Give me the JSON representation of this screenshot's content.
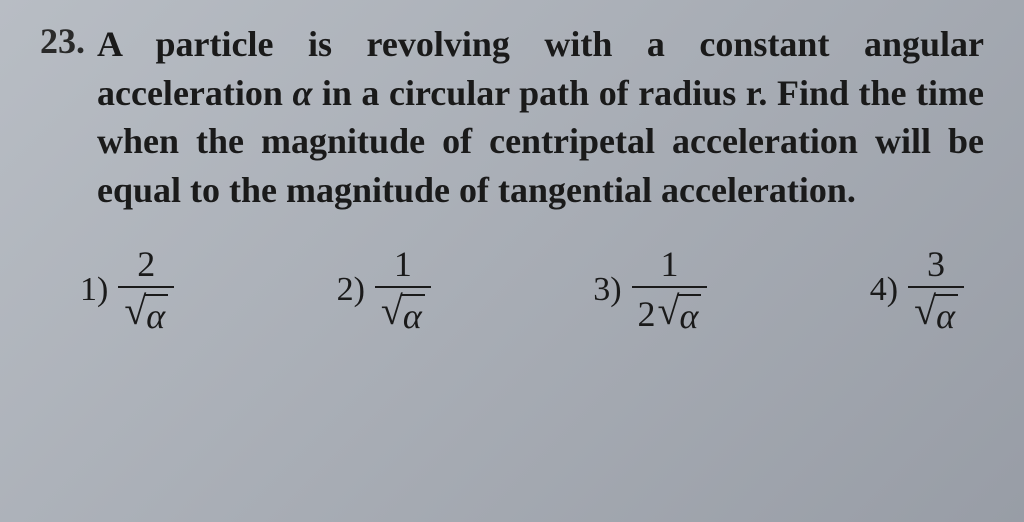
{
  "question": {
    "number": "23.",
    "text_parts": {
      "p1": "A particle is revolving with a constant angular acceleration ",
      "alpha": "α",
      "p2": " in a circular path of radius r. Find the time when the magnitude of centripetal acceleration will be equal to the magnitude of tangential acceleration."
    }
  },
  "options": [
    {
      "label": "1)",
      "numerator": "2",
      "coef": "",
      "radicand": "α"
    },
    {
      "label": "2)",
      "numerator": "1",
      "coef": "",
      "radicand": "α"
    },
    {
      "label": "3)",
      "numerator": "1",
      "coef": "2",
      "radicand": "α"
    },
    {
      "label": "4)",
      "numerator": "3",
      "coef": "",
      "radicand": "α"
    }
  ],
  "style": {
    "background_gradient": [
      "#b8bdc4",
      "#a8adb5",
      "#989da6"
    ],
    "text_color": "#1a1a1a",
    "question_fontsize": 36,
    "option_fontsize": 34,
    "fraction_fontsize": 36,
    "font_family": "Georgia, Times New Roman, serif",
    "font_weight_question": "bold",
    "line_height": 1.35,
    "fraction_bar_thickness": 2.5
  }
}
